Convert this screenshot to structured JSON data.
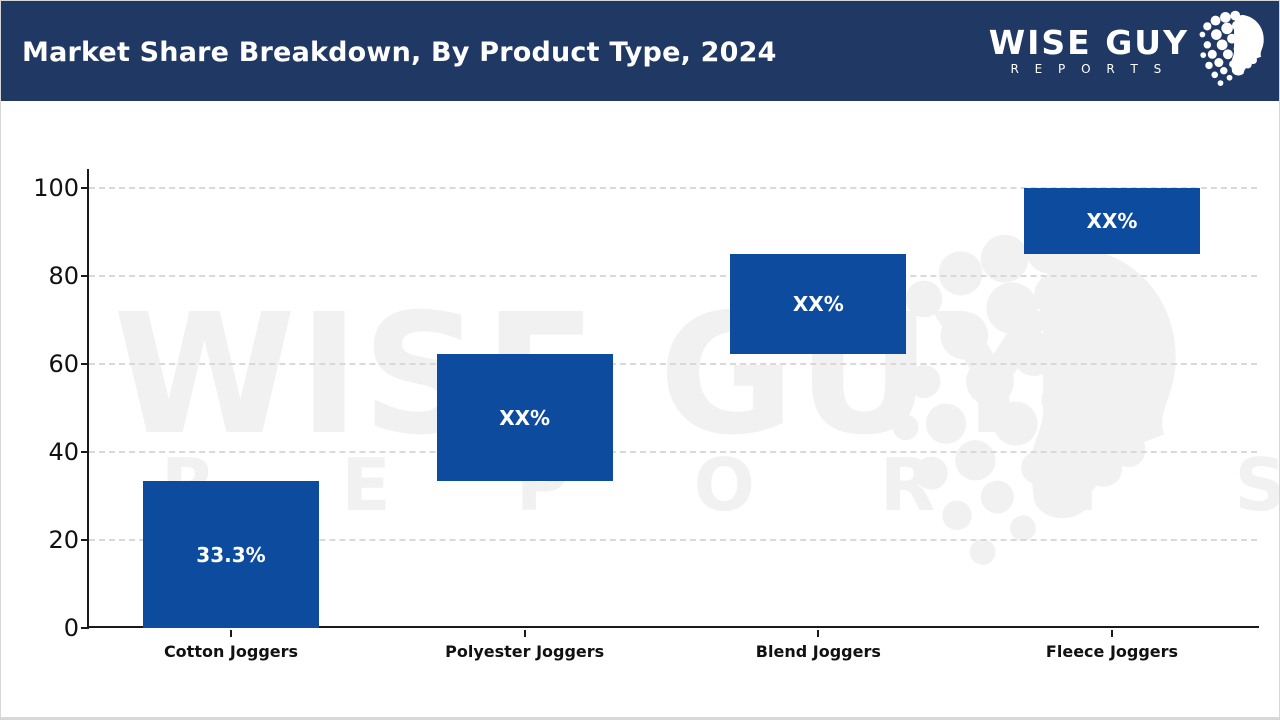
{
  "header": {
    "title": "Market Share Breakdown, By Product Type, 2024",
    "logo": {
      "line1": "WISE GUY",
      "line2": "R E P O R T S"
    }
  },
  "watermark": {
    "line1": "WISE GUY",
    "line2": "R E P O R T S"
  },
  "colors": {
    "header_bg": "#203864",
    "bar_blue": "#0d4b9f",
    "gridline": "#d9d9d9",
    "axis": "#1a1a1a",
    "watermark": "#f1f1f1",
    "value_label": "#ffffff"
  },
  "chart_data": {
    "type": "bar",
    "subtype": "waterfall",
    "title": "Market Share Breakdown, By Product Type, 2024",
    "categories": [
      "Cotton Joggers",
      "Polyester Joggers",
      "Blend Joggers",
      "Fleece Joggers"
    ],
    "bars": [
      {
        "category": "Cotton Joggers",
        "start": 0,
        "end": 33.3,
        "label": "33.3%"
      },
      {
        "category": "Polyester Joggers",
        "start": 33.3,
        "end": 62.3,
        "label": "XX%"
      },
      {
        "category": "Blend Joggers",
        "start": 62.3,
        "end": 85.1,
        "label": "XX%"
      },
      {
        "category": "Fleece Joggers",
        "start": 85.1,
        "end": 100,
        "label": "XX%"
      }
    ],
    "xlabel": "",
    "ylabel": "",
    "ylim": [
      0,
      100
    ],
    "yticks": [
      0,
      20,
      40,
      60,
      80,
      100
    ],
    "grid": "horizontal-dashed",
    "legend": "none"
  }
}
